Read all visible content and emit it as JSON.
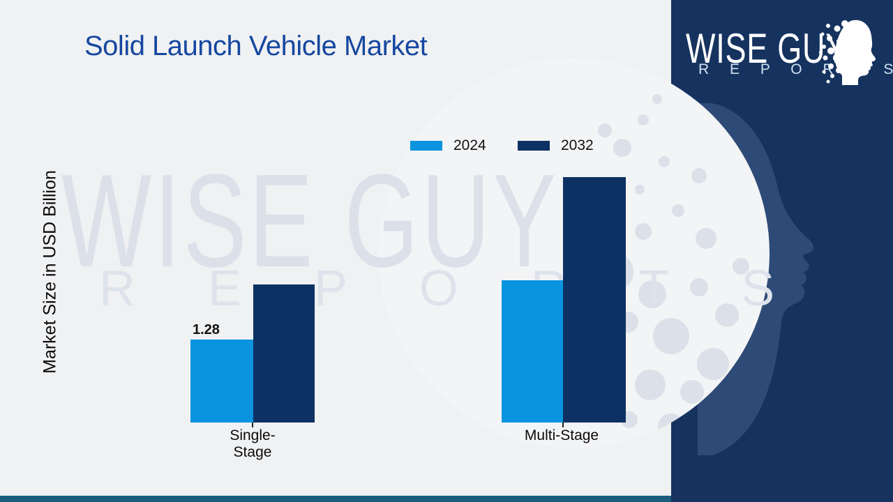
{
  "title": {
    "text": "Solid Launch Vehicle Market"
  },
  "colors": {
    "background": "#f0f1f3",
    "title": "#1547a0",
    "bar_2024": "#0a94df",
    "bar_2032": "#0e3163",
    "brand_panel": "#16335f",
    "bottom_strip": "#1a5d7e"
  },
  "x_tick_labels": {
    "single": [
      "Single-",
      "Stage"
    ],
    "multi": [
      "Multi-Stage"
    ]
  },
  "watermark": {
    "line1": "WISE GUY",
    "line2": "R E P O R T S"
  },
  "logo": {
    "line1": "WISE GUY",
    "line2": "R E P O R T S"
  },
  "chart_data": {
    "type": "bar",
    "categories": [
      "Single-Stage",
      "Multi-Stage"
    ],
    "series": [
      {
        "name": "2024",
        "color": "#0a94df",
        "values": [
          1.28,
          2.2
        ]
      },
      {
        "name": "2032",
        "color": "#0e3163",
        "values": [
          2.13,
          3.79
        ]
      }
    ],
    "title": "Solid Launch Vehicle Market",
    "xlabel": "",
    "ylabel": "Market Size in USD Billion",
    "ylim": [
      0,
      4
    ],
    "grid": false,
    "legend_position": "top-right",
    "shown_value_labels": [
      {
        "category": "Single-Stage",
        "series": "2024",
        "text": "1.28"
      }
    ]
  }
}
